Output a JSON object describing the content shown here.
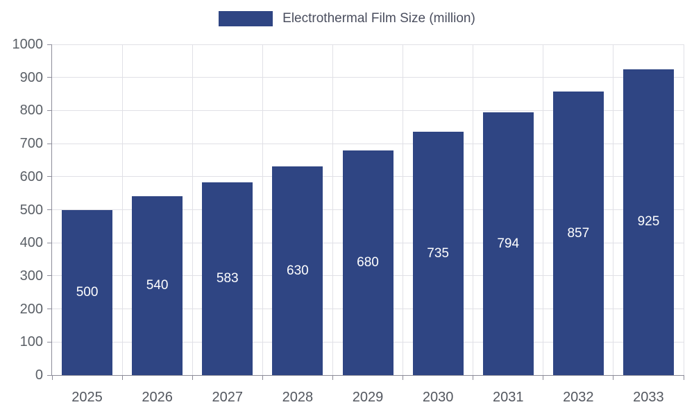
{
  "chart_data": {
    "type": "bar",
    "title": "Electrothermal Film Size (million)",
    "categories": [
      "2025",
      "2026",
      "2027",
      "2028",
      "2029",
      "2030",
      "2031",
      "2032",
      "2033"
    ],
    "values": [
      500,
      540,
      583,
      630,
      680,
      735,
      794,
      857,
      925
    ],
    "xlabel": "",
    "ylabel": "",
    "ylim": [
      0,
      1000
    ],
    "ytick_step": 100,
    "ytick_labels": [
      "0",
      "100",
      "200",
      "300",
      "400",
      "500",
      "600",
      "700",
      "800",
      "900",
      "1000"
    ],
    "grid": true,
    "legend_position": "top",
    "bar_color": "#2f4583",
    "value_label_color": "#ffffff",
    "value_label_position": "inside-center"
  },
  "legend": {
    "label": "Electrothermal Film Size (million)"
  }
}
